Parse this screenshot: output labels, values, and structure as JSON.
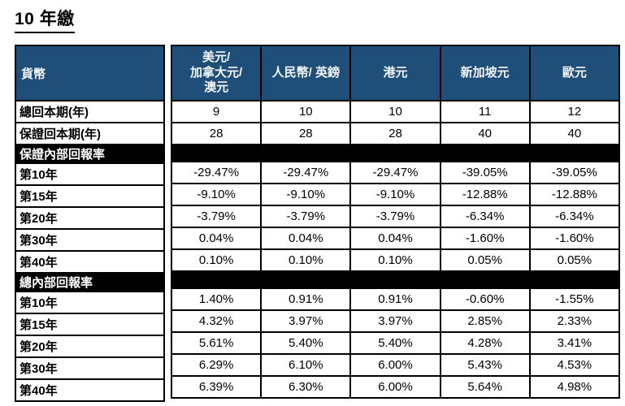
{
  "title": "10 年繳",
  "colors": {
    "header_bg": "#1F4E79",
    "header_text": "#F2F6FA",
    "section_band_bg": "#000000",
    "section_band_text": "#FFFFFF",
    "border": "#000000"
  },
  "table": {
    "currency_header": "貨幣",
    "columns": [
      "美元/\n加拿大元/\n澳元",
      "人民幣/ 英鎊",
      "港元",
      "新加坡元",
      "歐元"
    ],
    "rows": [
      {
        "type": "data",
        "label": "總回本期(年)",
        "values": [
          "9",
          "10",
          "10",
          "11",
          "12"
        ]
      },
      {
        "type": "data",
        "label": "保證回本期(年)",
        "values": [
          "28",
          "28",
          "28",
          "40",
          "40"
        ]
      },
      {
        "type": "section",
        "label": "保證內部回報率"
      },
      {
        "type": "data",
        "label": "第10年",
        "values": [
          "-29.47%",
          "-29.47%",
          "-29.47%",
          "-39.05%",
          "-39.05%"
        ]
      },
      {
        "type": "data",
        "label": "第15年",
        "values": [
          "-9.10%",
          "-9.10%",
          "-9.10%",
          "-12.88%",
          "-12.88%"
        ]
      },
      {
        "type": "data",
        "label": "第20年",
        "values": [
          "-3.79%",
          "-3.79%",
          "-3.79%",
          "-6.34%",
          "-6.34%"
        ]
      },
      {
        "type": "data",
        "label": "第30年",
        "values": [
          "0.04%",
          "0.04%",
          "0.04%",
          "-1.60%",
          "-1.60%"
        ]
      },
      {
        "type": "data",
        "label": "第40年",
        "values": [
          "0.10%",
          "0.10%",
          "0.10%",
          "0.05%",
          "0.05%"
        ]
      },
      {
        "type": "section",
        "label": "總內部回報率"
      },
      {
        "type": "data",
        "label": "第10年",
        "values": [
          "1.40%",
          "0.91%",
          "0.91%",
          "-0.60%",
          "-1.55%"
        ]
      },
      {
        "type": "data",
        "label": "第15年",
        "values": [
          "4.32%",
          "3.97%",
          "3.97%",
          "2.85%",
          "2.33%"
        ]
      },
      {
        "type": "data",
        "label": "第20年",
        "values": [
          "5.61%",
          "5.40%",
          "5.40%",
          "4.28%",
          "3.41%"
        ]
      },
      {
        "type": "data",
        "label": "第30年",
        "values": [
          "6.29%",
          "6.10%",
          "6.00%",
          "5.43%",
          "4.53%"
        ]
      },
      {
        "type": "data",
        "label": "第40年",
        "values": [
          "6.39%",
          "6.30%",
          "6.00%",
          "5.64%",
          "4.98%"
        ]
      }
    ]
  }
}
